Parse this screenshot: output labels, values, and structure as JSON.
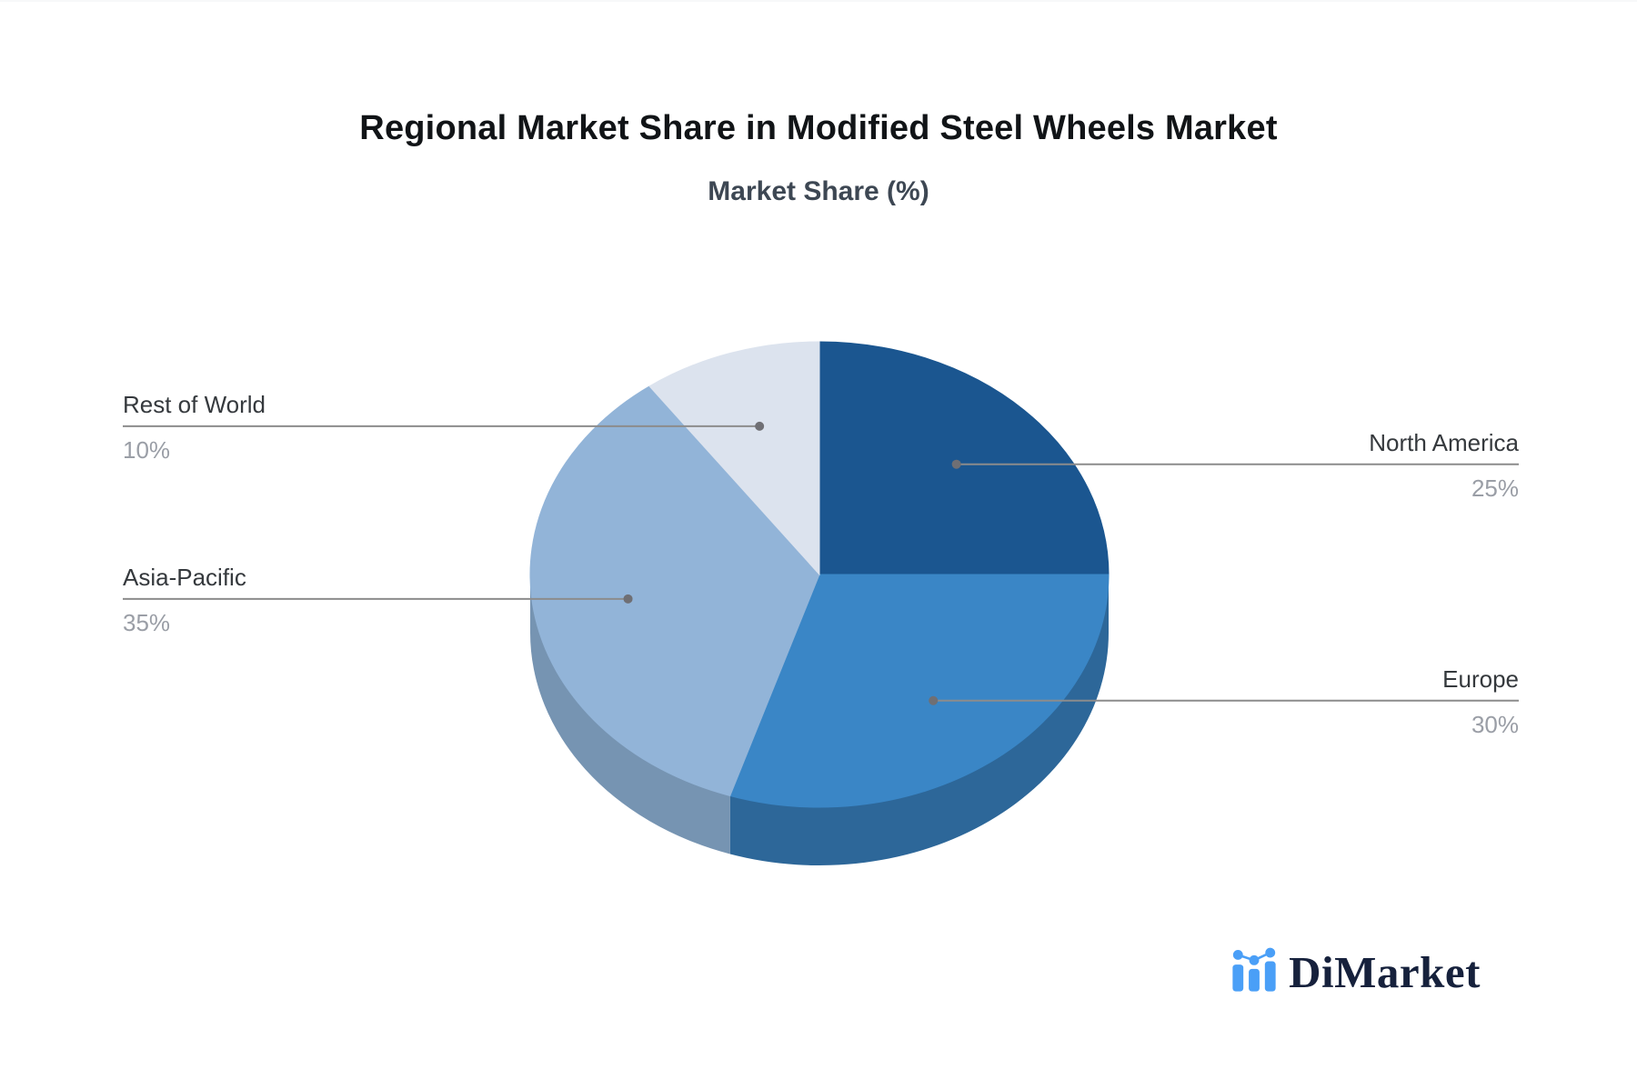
{
  "header": {
    "title": "Regional Market Share in Modified Steel Wheels Market",
    "subtitle": "Market Share (%)"
  },
  "chart_data": {
    "type": "pie",
    "title": "Regional Market Share in Modified Steel Wheels Market",
    "subtitle": "Market Share (%)",
    "unit": "%",
    "start_angle_deg": 90,
    "direction": "clockwise",
    "style": "3d-pie",
    "legend": "none",
    "labels_layout": "leader-lines-left-right",
    "slices": [
      {
        "label": "North America",
        "value": 25,
        "pct_label": "25%",
        "color": "#1b5690",
        "side_color": "#154a7c"
      },
      {
        "label": "Europe",
        "value": 30,
        "pct_label": "30%",
        "color": "#3a86c6",
        "side_color": "#2d6799"
      },
      {
        "label": "Asia-Pacific",
        "value": 35,
        "pct_label": "35%",
        "color": "#92b4d8",
        "side_color": "#7694b2"
      },
      {
        "label": "Rest of World",
        "value": 10,
        "pct_label": "10%",
        "color": "#dce3ee",
        "side_color": "#b9c3d4"
      }
    ],
    "leader_line_color": "#8c8c8c",
    "leader_dot_color": "#6f6f74",
    "label_text_color": "#35393d",
    "pct_text_color": "#9a9ea6"
  },
  "branding": {
    "logo_text": "DiMarket",
    "logo_text_color": "#16213c",
    "icon_color": "#4a9ff7",
    "icon_name": "bar-chart-icon"
  }
}
